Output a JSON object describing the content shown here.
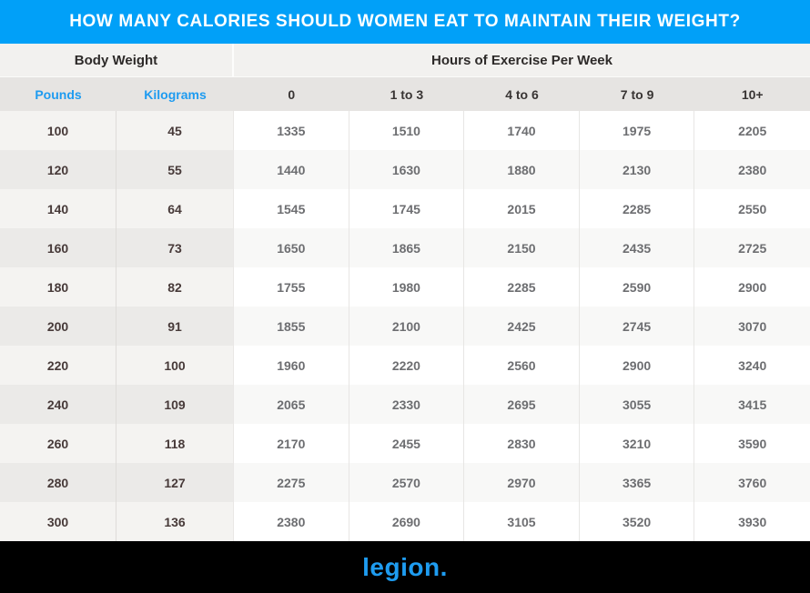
{
  "title": "HOW MANY CALORIES SHOULD WOMEN EAT TO MAINTAIN THEIR WEIGHT?",
  "colors": {
    "title_bar_blue": "#01A0F8",
    "accent_blue": "#1E9BF0",
    "logo_blue": "#1E9CF0",
    "footer_black": "#000000",
    "weight_text": "#473A39",
    "calorie_text": "#6D6E71"
  },
  "table": {
    "group_headers": {
      "body_weight": "Body Weight",
      "exercise": "Hours of Exercise Per Week"
    },
    "columns": {
      "pounds": "Pounds",
      "kilograms": "Kilograms",
      "h0": "0",
      "h1_3": "1 to 3",
      "h4_6": "4 to 6",
      "h7_9": "7 to 9",
      "h10": "10+"
    }
  },
  "chart_data": {
    "type": "table",
    "title": "HOW MANY CALORIES SHOULD WOMEN EAT TO MAINTAIN THEIR WEIGHT?",
    "column_groups": [
      "Body Weight",
      "Hours of Exercise Per Week"
    ],
    "columns": [
      "Pounds",
      "Kilograms",
      "0",
      "1 to 3",
      "4 to 6",
      "7 to 9",
      "10+"
    ],
    "rows": [
      [
        "100",
        "45",
        "1335",
        "1510",
        "1740",
        "1975",
        "2205"
      ],
      [
        "120",
        "55",
        "1440",
        "1630",
        "1880",
        "2130",
        "2380"
      ],
      [
        "140",
        "64",
        "1545",
        "1745",
        "2015",
        "2285",
        "2550"
      ],
      [
        "160",
        "73",
        "1650",
        "1865",
        "2150",
        "2435",
        "2725"
      ],
      [
        "180",
        "82",
        "1755",
        "1980",
        "2285",
        "2590",
        "2900"
      ],
      [
        "200",
        "91",
        "1855",
        "2100",
        "2425",
        "2745",
        "3070"
      ],
      [
        "220",
        "100",
        "1960",
        "2220",
        "2560",
        "2900",
        "3240"
      ],
      [
        "240",
        "109",
        "2065",
        "2330",
        "2695",
        "3055",
        "3415"
      ],
      [
        "260",
        "118",
        "2170",
        "2455",
        "2830",
        "3210",
        "3590"
      ],
      [
        "280",
        "127",
        "2275",
        "2570",
        "2970",
        "3365",
        "3760"
      ],
      [
        "300",
        "136",
        "2380",
        "2690",
        "3105",
        "3520",
        "3930"
      ]
    ]
  },
  "footer": {
    "logo_text": "legion."
  }
}
